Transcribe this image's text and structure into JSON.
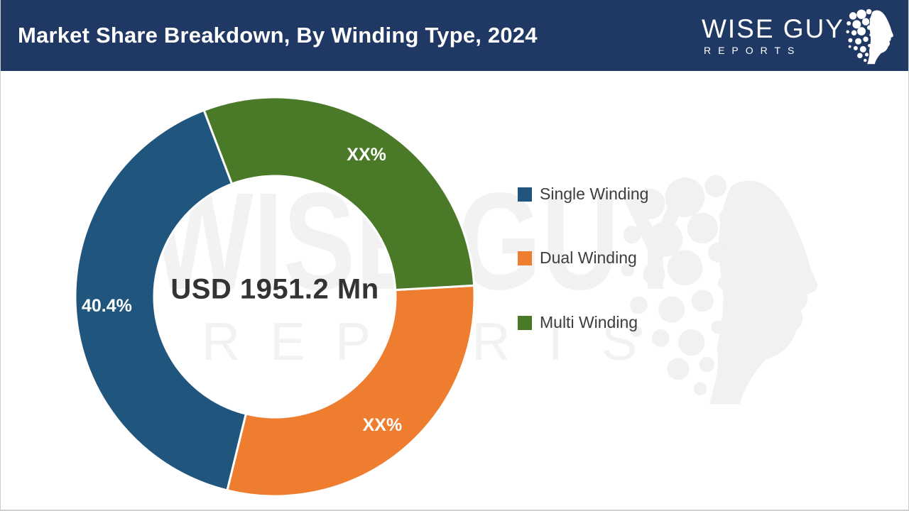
{
  "header": {
    "title": "Market Share Breakdown, By Winding Type, 2024",
    "bg_color": "#1f3864"
  },
  "logo": {
    "line1": "WISE GUY",
    "line2": "REPORTS"
  },
  "watermark": {
    "line1": "WISE GUY",
    "line2": "REPORTS"
  },
  "chart_data": {
    "type": "pie",
    "subtype": "donut",
    "title": "Market Share Breakdown, By Winding Type, 2024",
    "center_label": "USD 1951.2 Mn",
    "units": "percent of market share",
    "legend_position": "right",
    "categories": [
      "Single Winding",
      "Dual Winding",
      "Multi Winding"
    ],
    "values": [
      40.4,
      29.7,
      29.9
    ],
    "slices": [
      {
        "name": "Single Winding",
        "value_pct": 40.4,
        "label": "40.4%",
        "color": "#20567e",
        "start_angle_deg": 110.8,
        "end_angle_deg": 256.2
      },
      {
        "name": "Dual Winding",
        "value_pct": 29.7,
        "label": "XX%",
        "color": "#ee7d30",
        "start_angle_deg": 256.2,
        "end_angle_deg": 363.2
      },
      {
        "name": "Multi Winding",
        "value_pct": 29.9,
        "label": "XX%",
        "color": "#4a7a28",
        "start_angle_deg": 3.2,
        "end_angle_deg": 110.8
      }
    ]
  }
}
